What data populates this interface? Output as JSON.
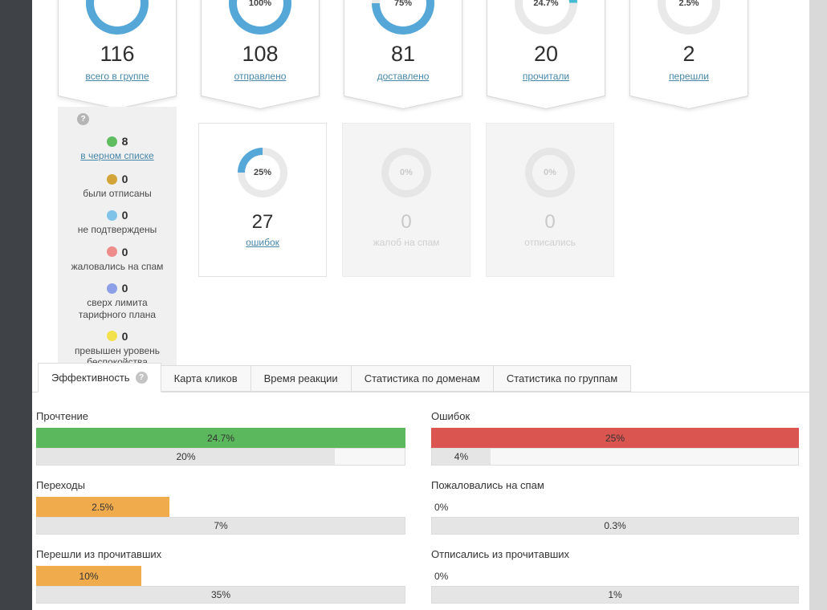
{
  "theme": {
    "blue": "#55a7d8",
    "teal": "#44bbd1",
    "green": "#5cb85c",
    "red": "#da5450",
    "orange": "#f0ab4c",
    "link_color": "#4787a9",
    "donut_track": "#e9e9e9"
  },
  "top_cards": [
    {
      "percent": "",
      "donut_percent": 100,
      "color": "#55a7d8",
      "value": "116",
      "label": "всего в группе"
    },
    {
      "percent": "100%",
      "donut_percent": 100,
      "color": "#55a7d8",
      "value": "108",
      "label": "отправлено"
    },
    {
      "percent": "75%",
      "donut_percent": 75,
      "color": "#55a7d8",
      "value": "81",
      "label": "доставлено"
    },
    {
      "percent": "24.7%",
      "donut_percent": 24.7,
      "color": "#44bbd1",
      "value": "20",
      "label": "прочитали"
    },
    {
      "percent": "2.5%",
      "donut_percent": 2.5,
      "color": "#55a7d8",
      "value": "2",
      "label": "перешли"
    }
  ],
  "legend": {
    "help": "?",
    "items": [
      {
        "color": "#5fbc61",
        "value": "8",
        "label": "в черном списке"
      },
      {
        "color": "#d3a539",
        "value": "0",
        "label": "были отписаны"
      },
      {
        "color": "#7fc4e8",
        "value": "0",
        "label": "не подтверждены"
      },
      {
        "color": "#ee8b8b",
        "value": "0",
        "label": "жаловались на спам"
      },
      {
        "color": "#8d9fe6",
        "value": "0",
        "label": "сверх лимита тарифного плана"
      },
      {
        "color": "#f3e14c",
        "value": "0",
        "label": "превышен уровень беспокойства"
      }
    ]
  },
  "mid_cards": [
    {
      "percent": "25%",
      "donut_percent": 25,
      "color": "#55a7d8",
      "reverse": true,
      "value": "27",
      "label": "ошибок"
    },
    {
      "percent": "0%",
      "donut_percent": 0,
      "color": "#55a7d8",
      "track": "#e6e6e6",
      "value": "0",
      "label": "жалоб на спам"
    },
    {
      "percent": "0%",
      "donut_percent": 0,
      "color": "#55a7d8",
      "track": "#e6e6e6",
      "value": "0",
      "label": "отписались"
    }
  ],
  "tabs": [
    {
      "label": "Эффективность",
      "help": "?"
    },
    {
      "label": "Карта кликов"
    },
    {
      "label": "Время реакции"
    },
    {
      "label": "Статистика по доменам"
    },
    {
      "label": "Статистика по группам"
    }
  ],
  "metrics": [
    {
      "title": "Прочтение",
      "primary": {
        "value": "24.7%",
        "pct": 100,
        "color": "#5cb85c"
      },
      "secondary": {
        "value": "20%",
        "pct": 81
      }
    },
    {
      "title": "Ошибок",
      "primary": {
        "value": "25%",
        "pct": 100,
        "color": "#da5450"
      },
      "secondary": {
        "value": "4%",
        "pct": 16
      }
    },
    {
      "title": "Переходы",
      "primary": {
        "value": "2.5%",
        "pct": 36,
        "color": "#f0ab4c"
      },
      "secondary": {
        "value": "7%",
        "pct": 100
      }
    },
    {
      "title": "Пожаловались на спам",
      "primary": {
        "value": "0%",
        "pct": 0,
        "color": null
      },
      "secondary": {
        "value": "0.3%",
        "pct": 100
      }
    },
    {
      "title": "Перешли из прочитавших",
      "primary": {
        "value": "10%",
        "pct": 28.5,
        "color": "#f0ab4c"
      },
      "secondary": {
        "value": "35%",
        "pct": 100
      }
    },
    {
      "title": "Отписались из прочитавших",
      "primary": {
        "value": "0%",
        "pct": 0,
        "color": null
      },
      "secondary": {
        "value": "1%",
        "pct": 100
      }
    }
  ]
}
